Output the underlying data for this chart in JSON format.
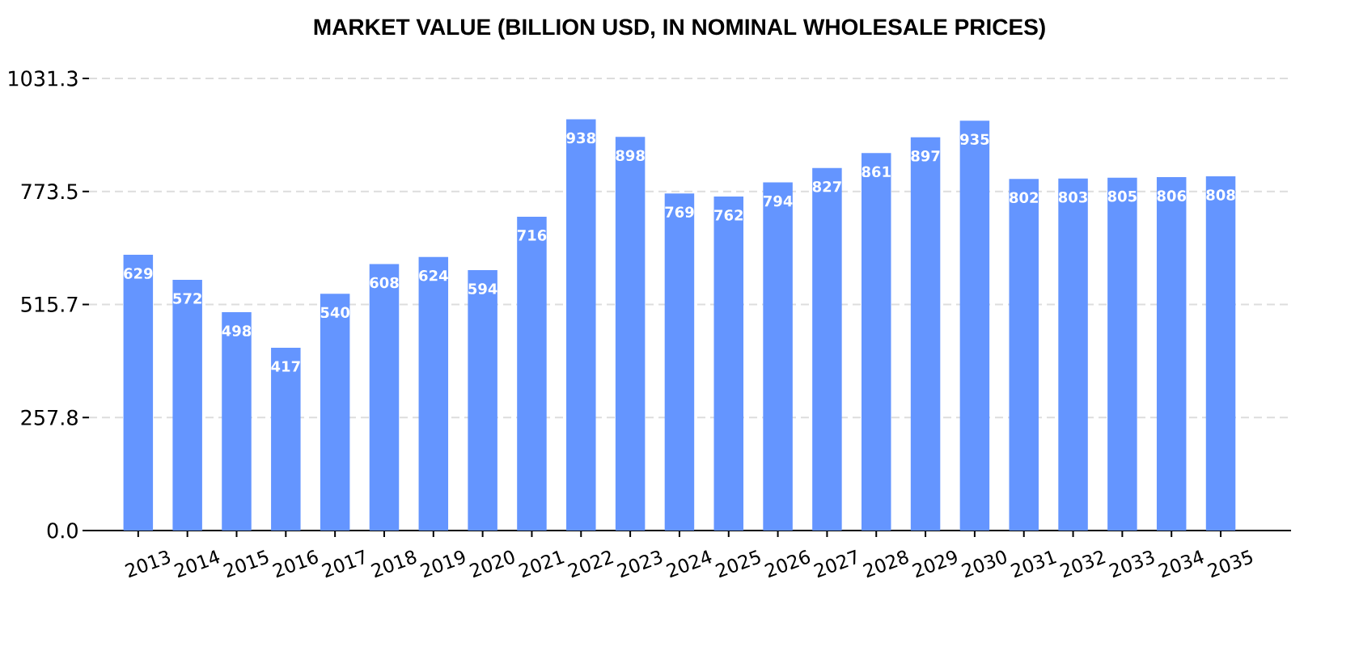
{
  "chart_data": {
    "type": "bar",
    "title": "MARKET VALUE (BILLION USD, IN NOMINAL WHOLESALE PRICES)",
    "categories": [
      "2013",
      "2014",
      "2015",
      "2016",
      "2017",
      "2018",
      "2019",
      "2020",
      "2021",
      "2022",
      "2023",
      "2024",
      "2025",
      "2026",
      "2027",
      "2028",
      "2029",
      "2030",
      "2031",
      "2032",
      "2033",
      "2034",
      "2035"
    ],
    "values": [
      629,
      572,
      498,
      417,
      540,
      608,
      624,
      594,
      716,
      938,
      898,
      769,
      762,
      794,
      827,
      861,
      897,
      935,
      802,
      803,
      805,
      806,
      808
    ],
    "color": "#6495ff",
    "data_labels": true,
    "ylim": [
      0,
      1031.3
    ],
    "yticks": [
      {
        "value": 0,
        "label": "0.0"
      },
      257.8,
      515.7,
      773.5,
      1031.3
    ],
    "grid": "y"
  }
}
